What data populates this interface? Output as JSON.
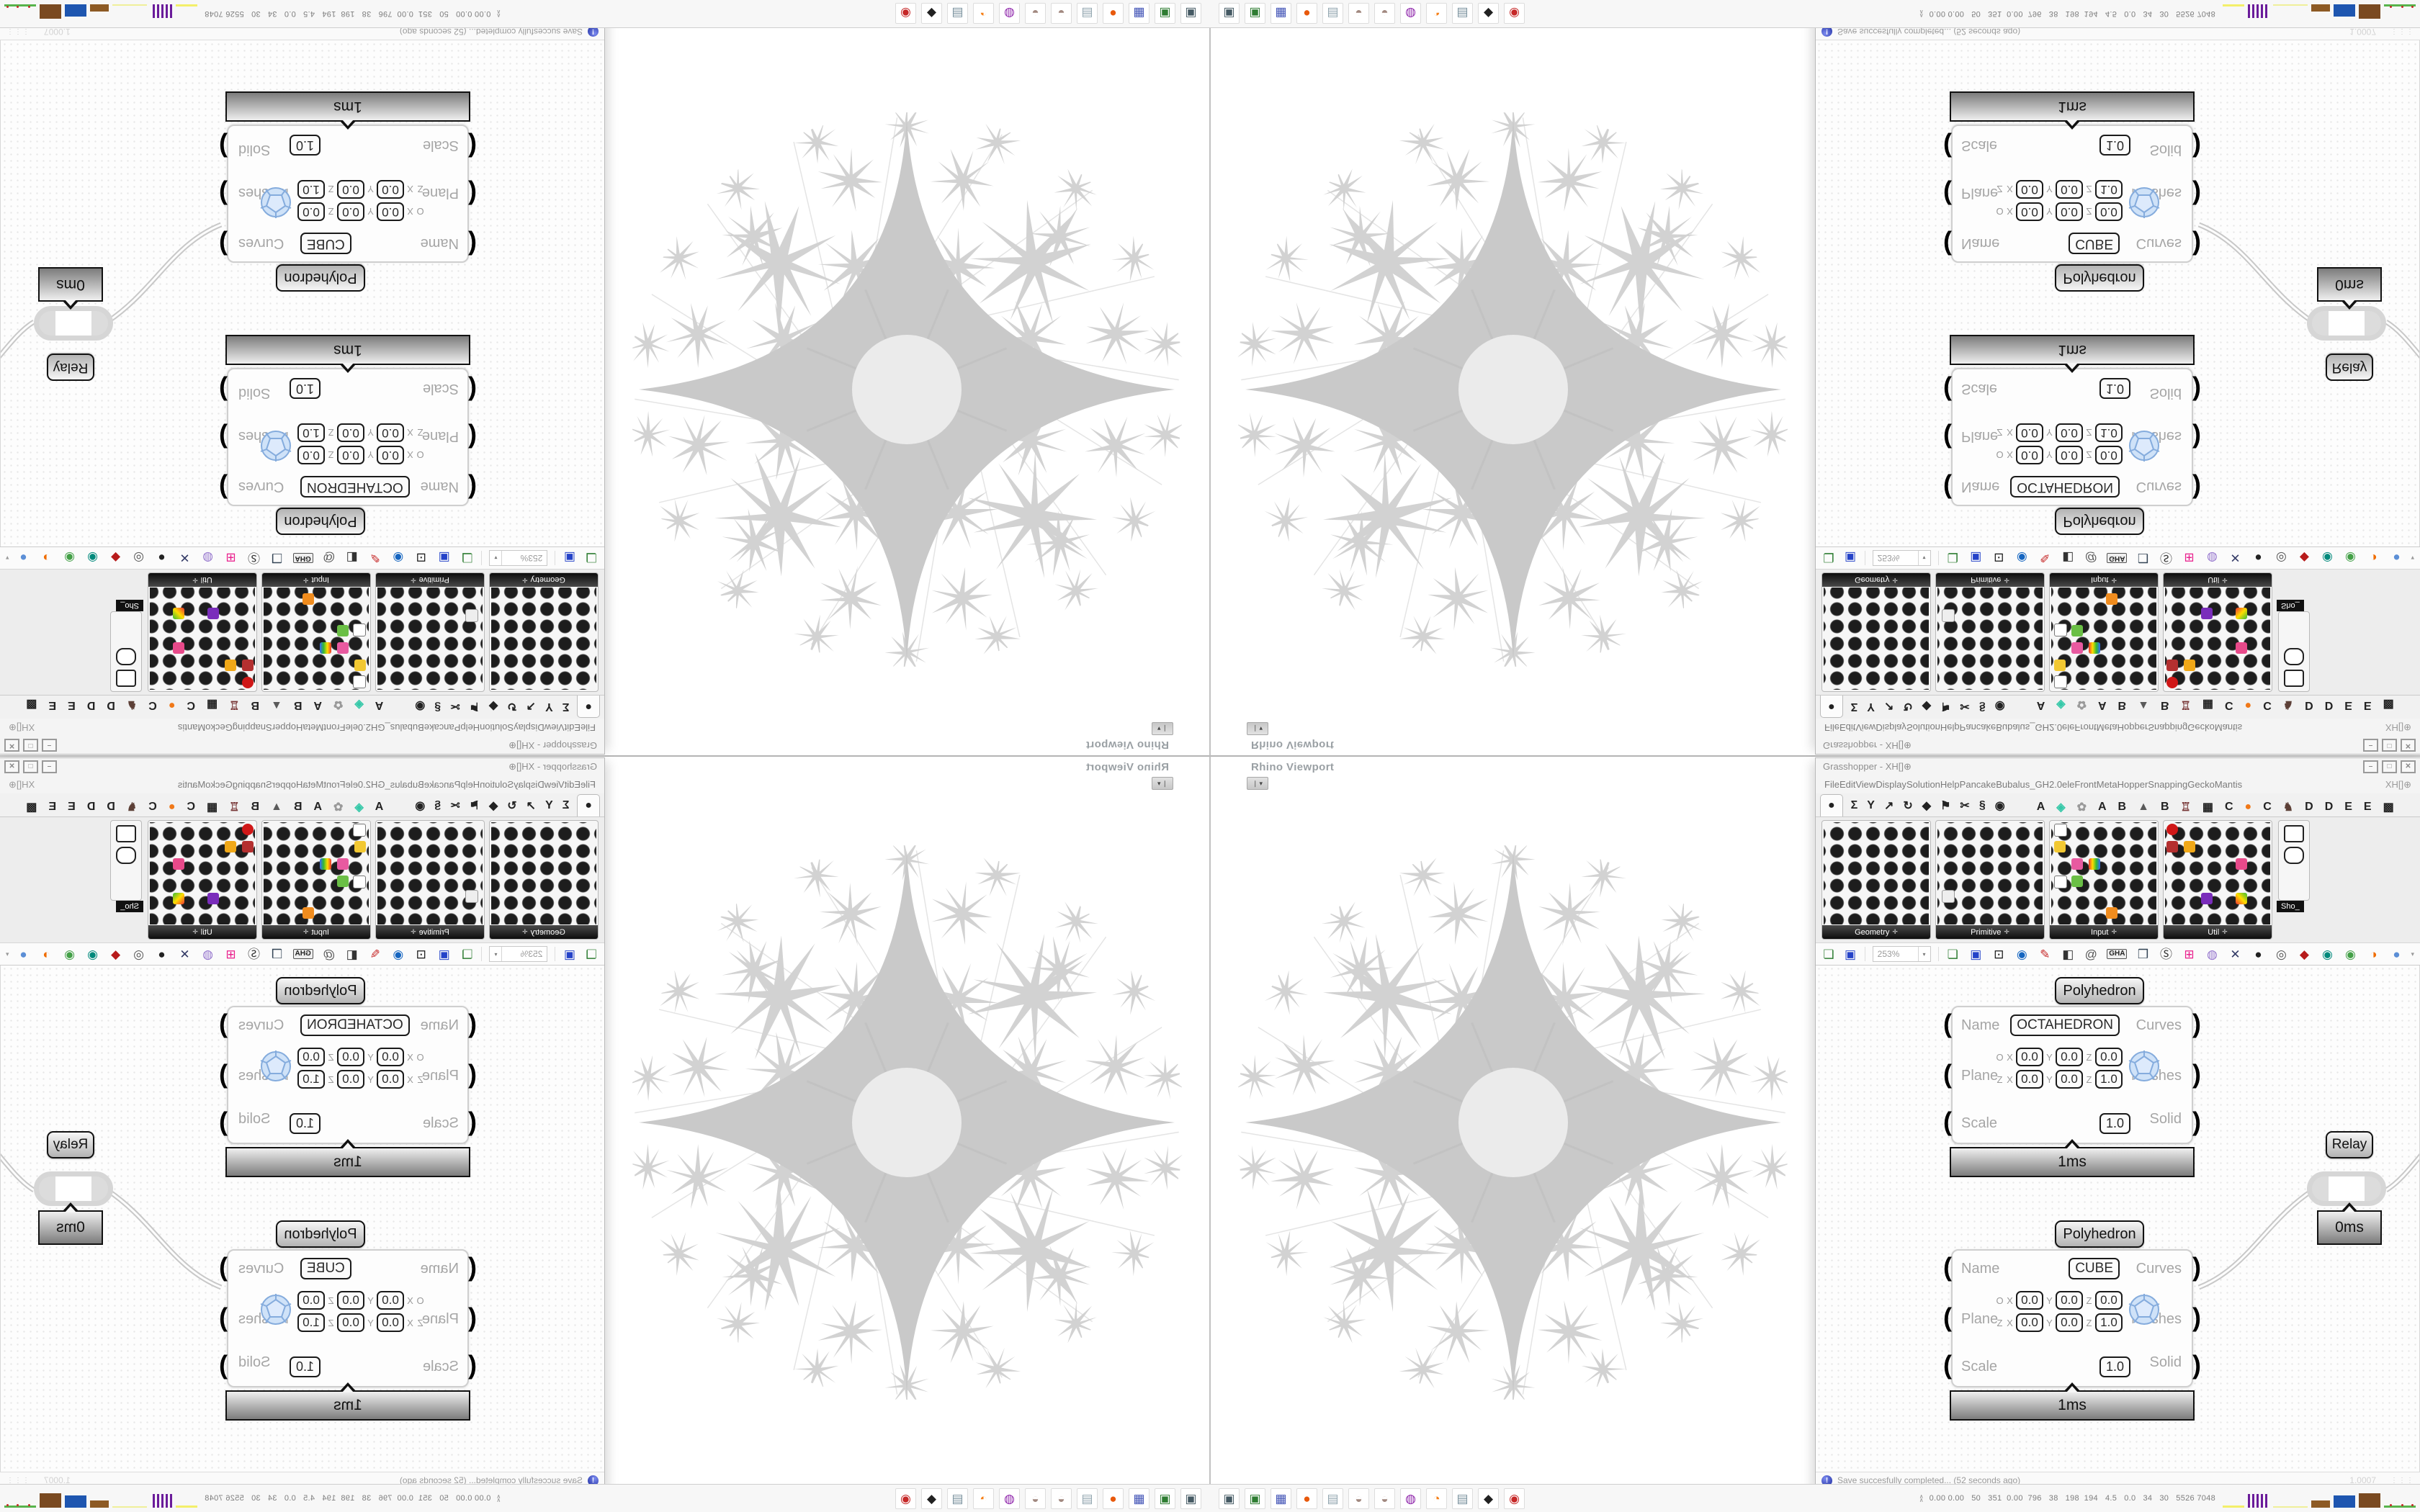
{
  "desktop": {
    "viewport": {
      "label": "Rhino Viewport",
      "dropdown_glyph": "▾",
      "bar_glyph": "❘"
    },
    "taskbar": {
      "launchers": [
        {
          "name": "terminal-launcher-icon",
          "glyph": "▣",
          "color": "#455a64"
        },
        {
          "name": "package-manager-launcher-icon",
          "glyph": "▣",
          "color": "#2e7d32"
        },
        {
          "name": "floppy-64-launcher-icon",
          "glyph": "▦",
          "color": "#3f51b5"
        },
        {
          "name": "firefox-launcher-icon",
          "glyph": "●",
          "color": "#e8590c"
        },
        {
          "name": "calculator-launcher-icon",
          "glyph": "▤",
          "color": "#90a4ae"
        },
        {
          "name": "paint-launcher-icon",
          "glyph": "◒",
          "color": "#a1887f"
        },
        {
          "name": "paint2-launcher-icon",
          "glyph": "◒",
          "color": "#a1887f"
        },
        {
          "name": "gimp-launcher-icon",
          "glyph": "◍",
          "color": "#8e24aa"
        },
        {
          "name": "blender-launcher-icon",
          "glyph": "◔",
          "color": "#f57f17"
        },
        {
          "name": "document-viewer-launcher-icon",
          "glyph": "▤",
          "color": "#78909c"
        },
        {
          "name": "inkscape-launcher-icon",
          "glyph": "◆",
          "color": "#212121"
        },
        {
          "name": "red-app-launcher-icon",
          "glyph": "◉",
          "color": "#c62828"
        }
      ],
      "monitor_chevron": "∧",
      "monitor_text": "0.00 0.00   50   351  0.00  796   38   198  194   4.5   0.0   34   30   5526 7048"
    }
  },
  "gh": {
    "title": "Grasshopper - XH[]⊕",
    "window_buttons": [
      {
        "name": "minimize-button",
        "glyph": "–"
      },
      {
        "name": "maximize-button",
        "glyph": "□"
      },
      {
        "name": "close-button",
        "glyph": "✕"
      }
    ],
    "menu": [
      "File",
      "Edit",
      "View",
      "Display",
      "Solution",
      "Help",
      "Pancake",
      "Bubalus_GH2.0",
      "eleFront",
      "MetaHopper",
      "SnappingGecko",
      "Mantis"
    ],
    "menu_right": "XH[]⊕",
    "tabs_left": [
      {
        "glyph": "●",
        "name": "tab-params",
        "cls": "sel"
      },
      {
        "glyph": "Σ",
        "name": "tab-maths"
      },
      {
        "glyph": "Y",
        "name": "tab-sets"
      },
      {
        "glyph": "↗",
        "name": "tab-vector"
      },
      {
        "glyph": "↻",
        "name": "tab-curve"
      },
      {
        "glyph": "◆",
        "name": "tab-surface"
      },
      {
        "glyph": "⚑",
        "name": "tab-mesh"
      },
      {
        "glyph": "✂",
        "name": "tab-intersect"
      },
      {
        "glyph": "§",
        "name": "tab-transform"
      },
      {
        "glyph": "◉",
        "name": "tab-display"
      }
    ],
    "tabs_right": [
      {
        "glyph": "A",
        "name": "tab-plugin-a1"
      },
      {
        "glyph": "◈",
        "name": "tab-plugin-gem",
        "color": "#35c8a8"
      },
      {
        "glyph": "✿",
        "name": "tab-plugin-flower",
        "color": "#9a9a9a"
      },
      {
        "glyph": "A",
        "name": "tab-plugin-a2"
      },
      {
        "glyph": "B",
        "name": "tab-plugin-b1"
      },
      {
        "glyph": "▲",
        "name": "tab-plugin-mountain",
        "color": "#5a5a5a"
      },
      {
        "glyph": "B",
        "name": "tab-plugin-b2"
      },
      {
        "glyph": "♖",
        "name": "tab-plugin-shield",
        "color": "#7a3a3a"
      },
      {
        "glyph": "▦",
        "name": "tab-plugin-grid"
      },
      {
        "glyph": "C",
        "name": "tab-plugin-c1"
      },
      {
        "glyph": "●",
        "name": "tab-plugin-orange",
        "color": "#f07818"
      },
      {
        "glyph": "C",
        "name": "tab-plugin-c2"
      },
      {
        "glyph": "♞",
        "name": "tab-plugin-bird",
        "color": "#5d4037"
      },
      {
        "glyph": "D",
        "name": "tab-plugin-d1"
      },
      {
        "glyph": "D",
        "name": "tab-plugin-d2"
      },
      {
        "glyph": "E",
        "name": "tab-plugin-e1"
      },
      {
        "glyph": "E",
        "name": "tab-plugin-e2"
      },
      {
        "glyph": "▩",
        "name": "tab-plugin-checker"
      }
    ],
    "palette": {
      "categories": [
        "Geometry",
        "Primitive",
        "Input",
        "Util"
      ],
      "expander_glyph": "✛",
      "tooltip": "Sho_"
    },
    "toolbar": {
      "zoom": "253%",
      "dropdown_glyph": "▾",
      "icons": [
        {
          "glyph": "❏",
          "name": "open-file-icon",
          "color": "#2e7d32"
        },
        {
          "glyph": "▣",
          "name": "save-file-icon",
          "color": "#2442c8"
        },
        {
          "glyph": "⊡",
          "name": "zoom-extents-icon",
          "color": "#111111"
        },
        {
          "glyph": "◉",
          "name": "preview-eye-icon",
          "color": "#1565c0"
        },
        {
          "glyph": "✎",
          "name": "sketch-pen-icon",
          "color": "#c62828"
        },
        {
          "glyph": "◧",
          "name": "preview-mesh-icon",
          "color": "#333333"
        },
        {
          "glyph": "@",
          "name": "metahopper-at-icon",
          "color": "#555555"
        },
        {
          "glyph": "GHA",
          "name": "gha-icon",
          "color": "#222222",
          "cls": "txt"
        },
        {
          "glyph": "❒",
          "name": "window-layers-icon",
          "color": "#334455"
        },
        {
          "glyph": "Ⓢ",
          "name": "finder-magnifier-icon",
          "color": "#333333"
        },
        {
          "glyph": "⊞",
          "name": "help-box-icon",
          "color": "#e91e8c"
        },
        {
          "glyph": "◍",
          "name": "lightbulb-icon",
          "color": "#9575cd"
        },
        {
          "glyph": "✕",
          "name": "galapagos-dna-icon",
          "color": "#333a66"
        },
        {
          "glyph": "●",
          "name": "black-sphere-icon",
          "color": "#222222"
        },
        {
          "glyph": "◎",
          "name": "rings-icon",
          "color": "#555555"
        },
        {
          "glyph": "◆",
          "name": "red-gem-icon",
          "color": "#b71c1c"
        },
        {
          "glyph": "◉",
          "name": "teal-pin-icon",
          "color": "#00897b"
        },
        {
          "glyph": "◉",
          "name": "green-pin-icon",
          "color": "#43a047"
        },
        {
          "glyph": "◑",
          "name": "orange-sphere-icon",
          "color": "#ef6c00"
        },
        {
          "glyph": "●",
          "name": "blue-sphere-icon",
          "color": "#5c8fd6"
        }
      ]
    },
    "canvas": {
      "components": [
        {
          "header": "Polyhedron",
          "inputs": [
            "Name",
            "Plane",
            "Scale"
          ],
          "outputs": [
            "Curves",
            "Meshes",
            "Solid"
          ],
          "name_value": "OCTAHEDRON",
          "scale_value": "1.0",
          "timer": "1ms",
          "plane_row_o": [
            {
              "cls": "pl",
              "v": "O"
            },
            {
              "cls": "pl",
              "v": "X"
            },
            {
              "cls": "pv",
              "v": "0.0"
            },
            {
              "cls": "pl",
              "v": "Y"
            },
            {
              "cls": "pv",
              "v": "0.0"
            },
            {
              "cls": "pl",
              "v": "Z"
            },
            {
              "cls": "pv",
              "v": "0.0"
            }
          ],
          "plane_row_z": [
            {
              "cls": "pl",
              "v": "Z"
            },
            {
              "cls": "pl",
              "v": "X"
            },
            {
              "cls": "pv",
              "v": "0.0"
            },
            {
              "cls": "pl",
              "v": "Y"
            },
            {
              "cls": "pv",
              "v": "0.0"
            },
            {
              "cls": "pl",
              "v": "Z"
            },
            {
              "cls": "pv",
              "v": "1.0"
            }
          ]
        },
        {
          "header": "Polyhedron",
          "inputs": [
            "Name",
            "Plane",
            "Scale"
          ],
          "outputs": [
            "Curves",
            "Meshes",
            "Solid"
          ],
          "name_value": "CUBE",
          "scale_value": "1.0",
          "timer": "1ms",
          "plane_row_o": [
            {
              "cls": "pl",
              "v": "O"
            },
            {
              "cls": "pl",
              "v": "X"
            },
            {
              "cls": "pv",
              "v": "0.0"
            },
            {
              "cls": "pl",
              "v": "Y"
            },
            {
              "cls": "pv",
              "v": "0.0"
            },
            {
              "cls": "pl",
              "v": "Z"
            },
            {
              "cls": "pv",
              "v": "0.0"
            }
          ],
          "plane_row_z": [
            {
              "cls": "pl",
              "v": "Z"
            },
            {
              "cls": "pl",
              "v": "X"
            },
            {
              "cls": "pv",
              "v": "0.0"
            },
            {
              "cls": "pl",
              "v": "Y"
            },
            {
              "cls": "pv",
              "v": "0.0"
            },
            {
              "cls": "pl",
              "v": "Z"
            },
            {
              "cls": "pv",
              "v": "1.0"
            }
          ]
        }
      ],
      "relay": {
        "label": "Relay",
        "timer": "0ms"
      }
    },
    "statusbar": {
      "icon_glyph": "!",
      "message": "Save succesfully completed... (52 seconds ago)",
      "value": "1.0007",
      "grip": "⋮⋮⋮"
    }
  },
  "colors": {
    "mantis_menu": "#35d9c0",
    "wire": "#c8c8c8",
    "component_border": "#cfcfcf",
    "sphere_star": "#d2d2d2",
    "sphere_center_star": "#c9c9c9"
  }
}
